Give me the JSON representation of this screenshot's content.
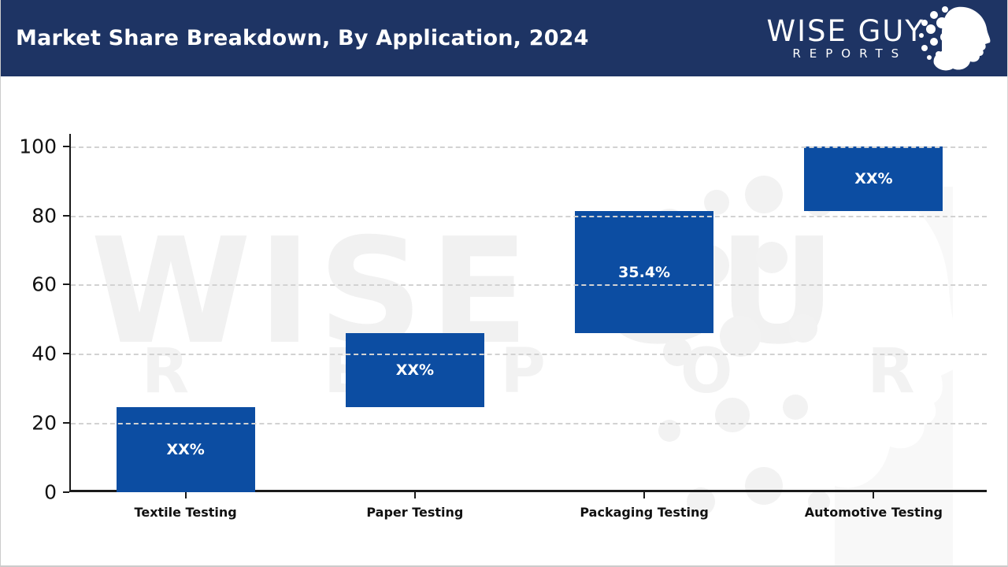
{
  "header": {
    "title": "Market Share Breakdown, By Application, 2024",
    "background_color": "#1E3464",
    "logo": {
      "line1": "WISE GUY",
      "line2": "REPORTS"
    }
  },
  "watermark": {
    "line1": "WISE GU",
    "line2": "R E P O R T S"
  },
  "chart_data": {
    "type": "bar",
    "subtype": "floating-segment-breakdown",
    "title": "Market Share Breakdown, By Application, 2024",
    "xlabel": "",
    "ylabel": "",
    "categories": [
      "Textile Testing",
      "Paper Testing",
      "Packaging Testing",
      "Automotive Testing"
    ],
    "segments": [
      {
        "category": "Textile Testing",
        "start": 0,
        "end": 24.7,
        "value": 24.7,
        "label": "XX%"
      },
      {
        "category": "Paper Testing",
        "start": 24.7,
        "end": 45.9,
        "value": 21.2,
        "label": "XX%"
      },
      {
        "category": "Packaging Testing",
        "start": 45.9,
        "end": 81.3,
        "value": 35.4,
        "label": "35.4%"
      },
      {
        "category": "Automotive Testing",
        "start": 81.3,
        "end": 100,
        "value": 18.7,
        "label": "XX%"
      }
    ],
    "yticks": [
      0,
      20,
      40,
      60,
      80,
      100
    ],
    "ylim": [
      0,
      103.6
    ],
    "grid": "horizontal-dashed",
    "legend": "none",
    "bar_color": "#0C4DA2",
    "bar_label_color": "#FFFFFF",
    "axis_color": "#1a1a1a",
    "gridline_color": "#d2d2d2"
  }
}
